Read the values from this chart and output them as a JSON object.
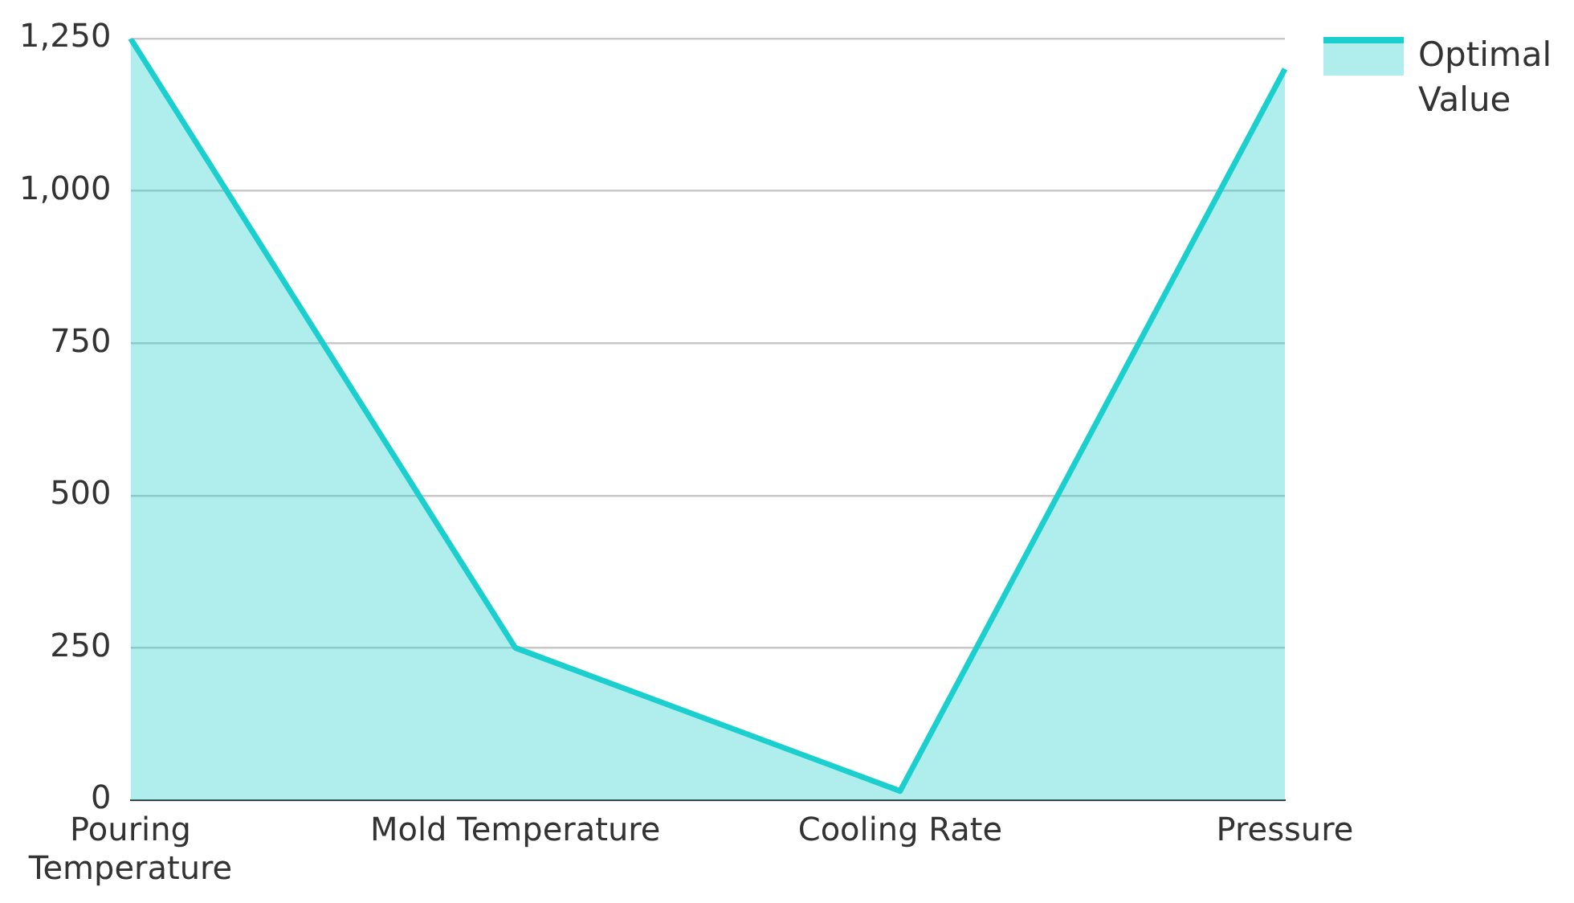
{
  "chart_data": {
    "type": "area",
    "categories": [
      "Pouring Temperature",
      "Mold Temperature",
      "Cooling Rate",
      "Pressure"
    ],
    "series": [
      {
        "name": "Optimal Value",
        "color": "#1ccfcf",
        "values": [
          1250,
          250,
          15,
          1200
        ]
      }
    ],
    "ylim": [
      0,
      1250
    ],
    "yticks": [
      0,
      250,
      500,
      750,
      {
        "value": 1000,
        "label": "1,000"
      },
      {
        "value": 1250,
        "label": "1,250"
      }
    ],
    "grid": "y",
    "legend": "top right",
    "marker": "none"
  }
}
